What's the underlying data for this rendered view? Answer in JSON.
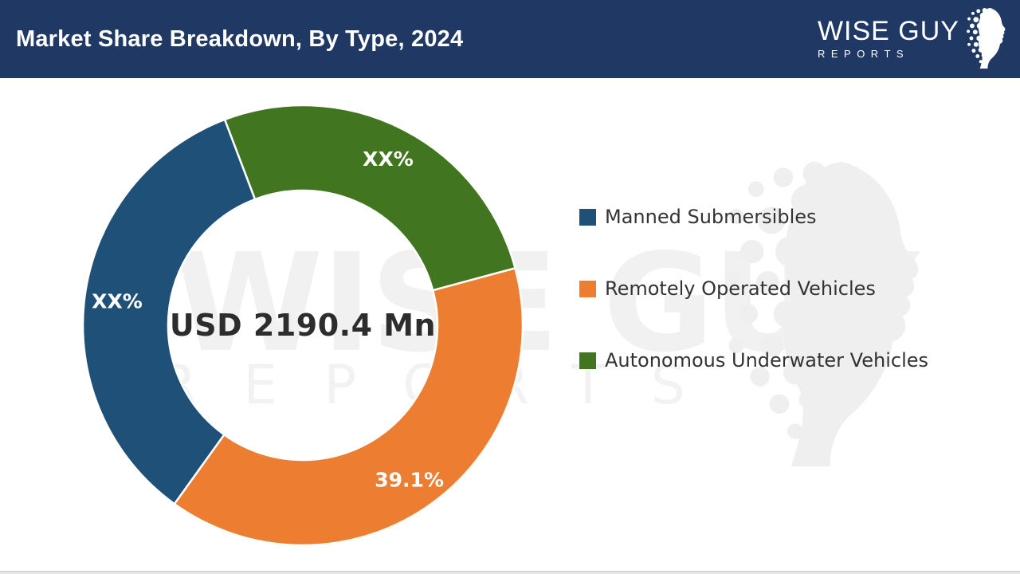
{
  "header": {
    "title": "Market Share Breakdown, By Type, 2024",
    "bg_color": "#1f3864",
    "logo": {
      "line1": "WISE GUY",
      "line2": "REPORTS"
    }
  },
  "watermark": {
    "line1": "WISE GUY",
    "line2": "REPORTS"
  },
  "chart_data": {
    "type": "pie",
    "subtype": "donut",
    "title": "Market Share Breakdown, By Type, 2024",
    "center_label": "USD 2190.4 Mn",
    "rotation_start_deg": 110.8,
    "outer_radius": 276,
    "inner_radius": 169,
    "label_radius": 235,
    "segments": [
      {
        "label": "Autonomous Underwater Vehicles",
        "display_label": "XX%",
        "percent": 26.6,
        "color": "#41751f"
      },
      {
        "label": "Remotely Operated Vehicles",
        "display_label": "39.1%",
        "percent": 39.1,
        "color": "#ed7d31"
      },
      {
        "label": "Manned Submersibles",
        "display_label": "XX%",
        "percent": 34.3,
        "color": "#1f5078"
      }
    ],
    "legend_position": "right"
  },
  "legend": {
    "items": [
      {
        "label": "Manned Submersibles"
      },
      {
        "label": "Remotely Operated Vehicles"
      },
      {
        "label": "Autonomous Underwater Vehicles"
      }
    ]
  },
  "colors": {
    "header_bg": "#1f3864",
    "center_text": "#2d2d2d",
    "legend_text": "#333333",
    "watermark": "#f1f1f1"
  }
}
